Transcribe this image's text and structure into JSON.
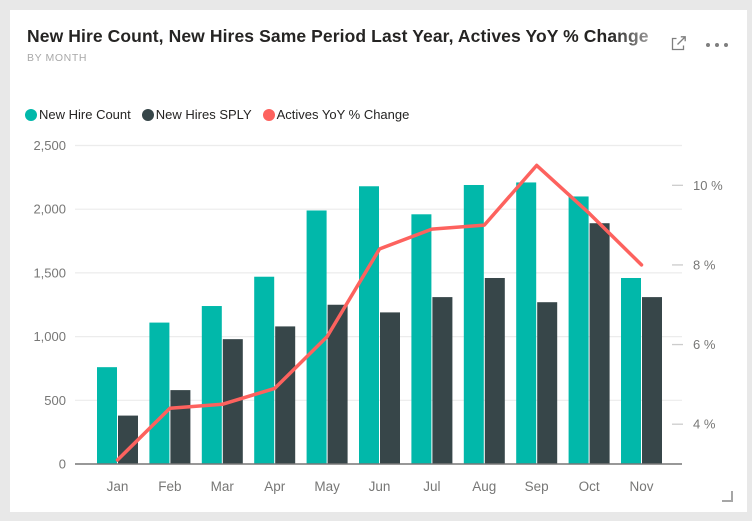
{
  "header": {
    "title": "New Hire Count, New Hires Same Period Last Year, Actives YoY % Change",
    "subtitle": "BY MONTH"
  },
  "legend": {
    "items": [
      {
        "label": "New Hire Count",
        "color": "#01B8AA"
      },
      {
        "label": "New Hires SPLY",
        "color": "#374649"
      },
      {
        "label": "Actives YoY % Change",
        "color": "#FD625E"
      }
    ]
  },
  "chart_data": {
    "type": "combo-bar-line",
    "title": "New Hire Count, New Hires Same Period Last Year, Actives YoY % Change by Month",
    "categories": [
      "Jan",
      "Feb",
      "Mar",
      "Apr",
      "May",
      "Jun",
      "Jul",
      "Aug",
      "Sep",
      "Oct",
      "Nov"
    ],
    "series": [
      {
        "name": "New Hire Count",
        "type": "bar",
        "axis": "left",
        "color": "#01B8AA",
        "values": [
          760,
          1110,
          1240,
          1470,
          1990,
          2180,
          1960,
          2190,
          2210,
          2100,
          1460
        ]
      },
      {
        "name": "New Hires SPLY",
        "type": "bar",
        "axis": "left",
        "color": "#374649",
        "values": [
          380,
          580,
          980,
          1080,
          1250,
          1190,
          1310,
          1460,
          1270,
          1890,
          1310
        ]
      },
      {
        "name": "Actives YoY % Change",
        "type": "line",
        "axis": "right",
        "color": "#FD625E",
        "values": [
          3.1,
          4.4,
          4.5,
          4.9,
          6.2,
          8.4,
          8.9,
          9.0,
          10.5,
          9.3,
          8.0
        ]
      }
    ],
    "left_axis": {
      "min": 0,
      "max": 2500,
      "tick_values": [
        0,
        500,
        1000,
        1500,
        2000,
        2500
      ],
      "tick_labels": [
        "0",
        "500",
        "1,000",
        "1,500",
        "2,000",
        "2,500"
      ]
    },
    "right_axis": {
      "plot_min": 3,
      "plot_max": 11,
      "tick_values": [
        4,
        6,
        8,
        10
      ],
      "tick_labels": [
        "4 %",
        "6 %",
        "8 %",
        "10 %"
      ]
    },
    "grid": true,
    "legend_position": "top"
  }
}
